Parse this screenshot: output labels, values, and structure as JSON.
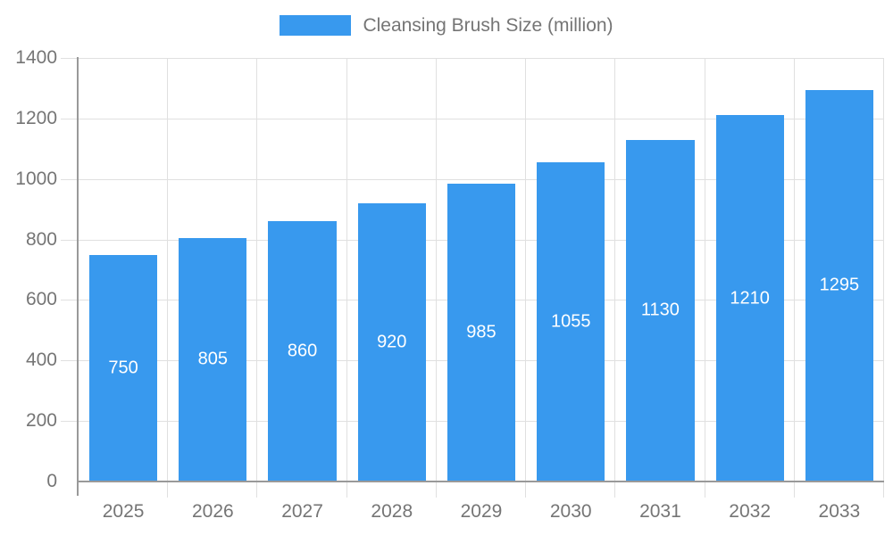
{
  "chart_data": {
    "type": "bar",
    "title": "Cleansing Brush Size (million)",
    "categories": [
      "2025",
      "2026",
      "2027",
      "2028",
      "2029",
      "2030",
      "2031",
      "2032",
      "2033"
    ],
    "series": [
      {
        "name": "Cleansing Brush Size (million)",
        "values": [
          750,
          805,
          860,
          920,
          985,
          1055,
          1130,
          1210,
          1295
        ]
      }
    ],
    "value_labels": [
      "750",
      "805",
      "860",
      "920",
      "985",
      "1055",
      "1130",
      "1210",
      "1295"
    ],
    "xlabel": "",
    "ylabel": "",
    "ylim": [
      0,
      1400
    ],
    "ytick_step": 200,
    "ytick_labels": [
      "0",
      "200",
      "400",
      "600",
      "800",
      "1000",
      "1200",
      "1400"
    ],
    "grid": true,
    "legend_position": "top"
  },
  "colors": {
    "bar": "#3899ee",
    "axis": "#999999",
    "grid": "#e0e0e0",
    "text": "#757575",
    "value_text": "#ffffff",
    "background": "#ffffff"
  }
}
